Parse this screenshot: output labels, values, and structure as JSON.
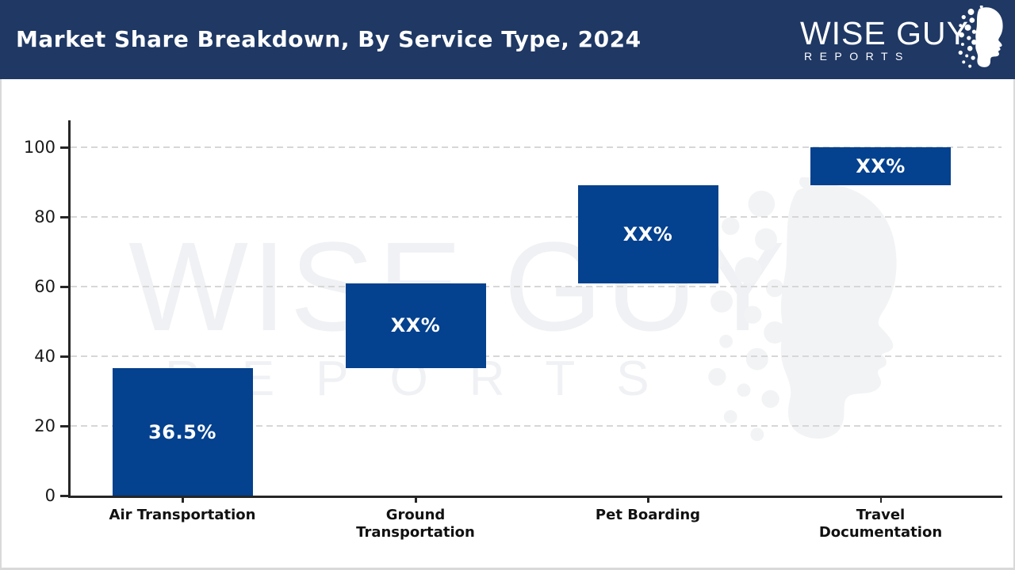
{
  "header": {
    "title": "Market Share Breakdown, By Service Type, 2024",
    "logo": {
      "wordmark": "WISE GUY",
      "subtitle": "REPORTS"
    }
  },
  "watermark": {
    "wordmark": "WISE GUY",
    "subtitle": "REPORTS"
  },
  "colors": {
    "header_bg": "#1f3864",
    "bar": "#04418e",
    "value_label": "#ffffff",
    "grid": "#d7d7d7",
    "axis": "#262626",
    "frame": "#d9d9d9",
    "watermark": "#f0f1f4"
  },
  "chart_data": {
    "type": "bar",
    "subtype": "floating-waterfall",
    "title": "Market Share Breakdown, By Service Type, 2024",
    "categories": [
      "Air Transportation",
      "Ground Transportation",
      "Pet Boarding",
      "Travel Documentation"
    ],
    "category_label_lines": [
      [
        "Air Transportation"
      ],
      [
        "Ground",
        "Transportation"
      ],
      [
        "Pet Boarding"
      ],
      [
        "Travel",
        "Documentation"
      ]
    ],
    "segments": [
      {
        "category": "Air Transportation",
        "start": 0,
        "end": 36.5,
        "label": "36.5%"
      },
      {
        "category": "Ground Transportation",
        "start": 36.5,
        "end": 61,
        "label": "XX%"
      },
      {
        "category": "Pet Boarding",
        "start": 61,
        "end": 89,
        "label": "XX%"
      },
      {
        "category": "Travel Documentation",
        "start": 89,
        "end": 100,
        "label": "XX%"
      }
    ],
    "ylim": [
      0,
      100
    ],
    "yticks": [
      0,
      20,
      40,
      60,
      80,
      100
    ],
    "xlabel": "",
    "ylabel": "",
    "grid": "horizontal-dashed",
    "legend_position": "none"
  }
}
